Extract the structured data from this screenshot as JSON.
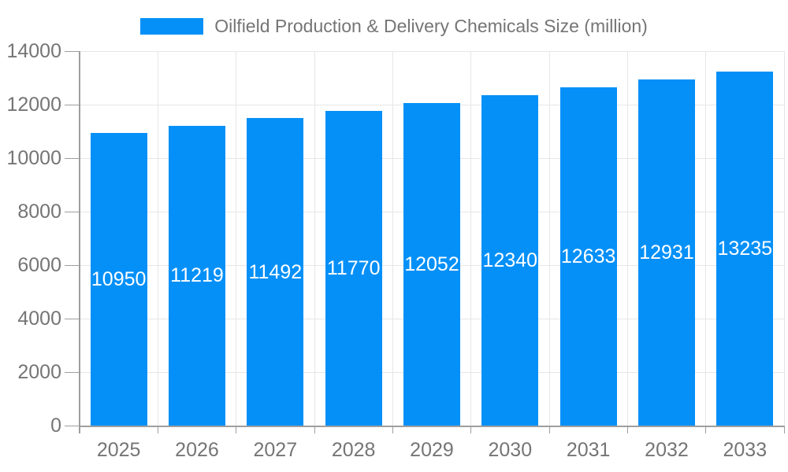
{
  "chart_data": {
    "type": "bar",
    "title": "Oilfield Production & Delivery Chemicals Size (million)",
    "categories": [
      "2025",
      "2026",
      "2027",
      "2028",
      "2029",
      "2030",
      "2031",
      "2032",
      "2033"
    ],
    "values": [
      10950,
      11219,
      11492,
      11770,
      12052,
      12340,
      12633,
      12931,
      13235
    ],
    "yticks": [
      0,
      2000,
      4000,
      6000,
      8000,
      10000,
      12000,
      14000
    ],
    "ylim": [
      0,
      14000
    ],
    "legend_position": "top",
    "grid": "on",
    "bar_labels_inside": true,
    "colors": {
      "bar": "#0590F8",
      "bar_label_text": "#ffffff",
      "axis_text": "#757575",
      "grid_line": "#e6e6e6",
      "axis_line": "#9e9e9e"
    }
  }
}
